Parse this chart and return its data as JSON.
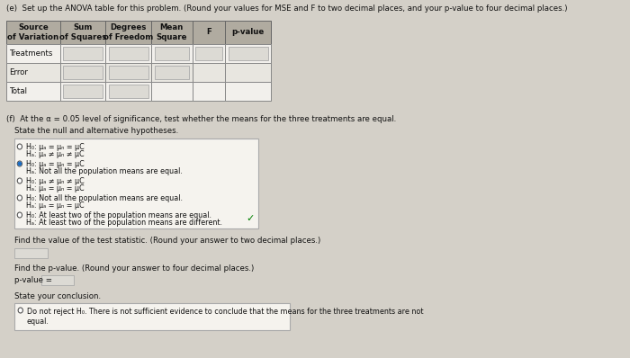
{
  "title": "(e)  Set up the ANOVA table for this problem. (Round your values for MSE and F to two decimal places, and your p-value to four decimal places.)",
  "table_headers": [
    "Source\nof Variation",
    "Sum\nof Squares",
    "Degrees\nof Freedom",
    "Mean\nSquare",
    "F",
    "p-value"
  ],
  "table_rows": [
    "Treatments",
    "Error",
    "Total"
  ],
  "section_f_title": "(f)  At the α = 0.05 level of significance, test whether the means for the three treatments are equal.",
  "hypothesis_label": "State the null and alternative hypotheses.",
  "options": [
    {
      "text_lines": [
        "H₀: μₐ = μₙ = μC",
        "Hₐ: μₐ ≠ μₙ ≠ μC"
      ],
      "selected": false
    },
    {
      "text_lines": [
        "H₀: μₐ = μₙ = μC",
        "Hₐ: Not all the population means are equal."
      ],
      "selected": true
    },
    {
      "text_lines": [
        "H₀: μₐ ≠ μₙ ≠ μC",
        "Hₐ: μₐ = μₙ = μC"
      ],
      "selected": false
    },
    {
      "text_lines": [
        "H₀: Not all the population means are equal.",
        "Hₐ: μₐ = μₙ = μC"
      ],
      "selected": false
    },
    {
      "text_lines": [
        "H₀: At least two of the population means are equal.",
        "Hₐ: At least two of the population means are different."
      ],
      "selected": false
    }
  ],
  "find_test_stat": "Find the value of the test statistic. (Round your answer to two decimal places.)",
  "find_pvalue": "Find the p-value. (Round your answer to four decimal places.)",
  "pvalue_label": "p-value =",
  "conclusion_label": "State your conclusion.",
  "conclusion_text": "Do not reject H₀. There is not sufficient evidence to conclude that the means for the three treatments are not equal.",
  "bg_color": "#d4d0c8",
  "header_bg": "#b0aba0",
  "table_border": "#888888",
  "text_color": "#111111",
  "selected_color": "#1a6dc4"
}
